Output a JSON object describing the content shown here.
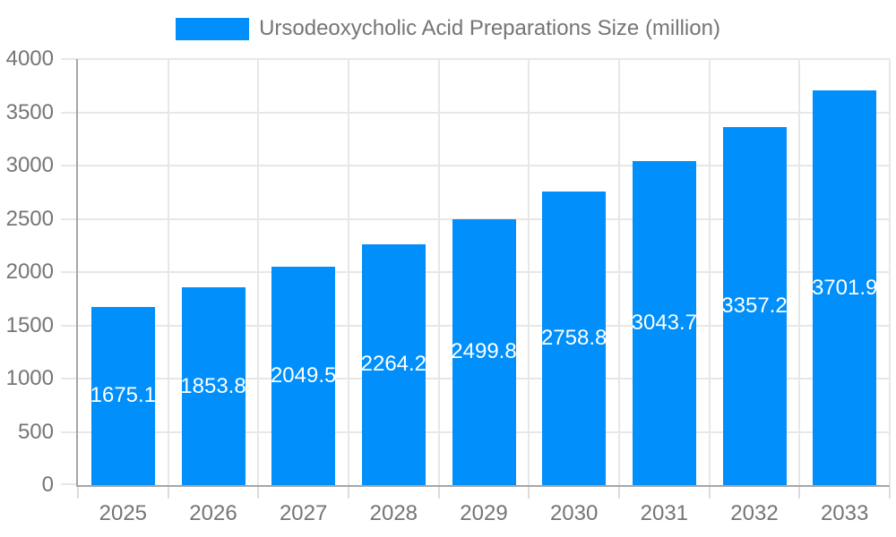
{
  "legend": {
    "items": [
      {
        "label": "Ursodeoxycholic Acid Preparations Size (million)",
        "color": "#008ffb"
      }
    ]
  },
  "chart_data": {
    "type": "bar",
    "title": "Ursodeoxycholic Acid Preparations Size (million)",
    "categories": [
      "2025",
      "2026",
      "2027",
      "2028",
      "2029",
      "2030",
      "2031",
      "2032",
      "2033"
    ],
    "series": [
      {
        "name": "Ursodeoxycholic Acid Preparations Size (million)",
        "color": "#008ffb",
        "values": [
          1675.1,
          1853.8,
          2049.5,
          2264.2,
          2499.8,
          2758.8,
          3043.7,
          3357.2,
          3701.9
        ]
      }
    ],
    "value_label_decimals": 1,
    "xlabel": "",
    "ylabel": "",
    "ylim": [
      0,
      4000
    ],
    "yticks": [
      0,
      500,
      1000,
      1500,
      2000,
      2500,
      3000,
      3500,
      4000
    ],
    "grid": true,
    "legend_position": "top-center",
    "colors": {
      "bar": "#008ffb",
      "value_label": "#ffffff",
      "axis_text": "#757575",
      "gridline": "#e7e7e7",
      "axis_line": "#a6a6a6",
      "x_tick": "#dcdcdc",
      "background": "#ffffff"
    }
  }
}
